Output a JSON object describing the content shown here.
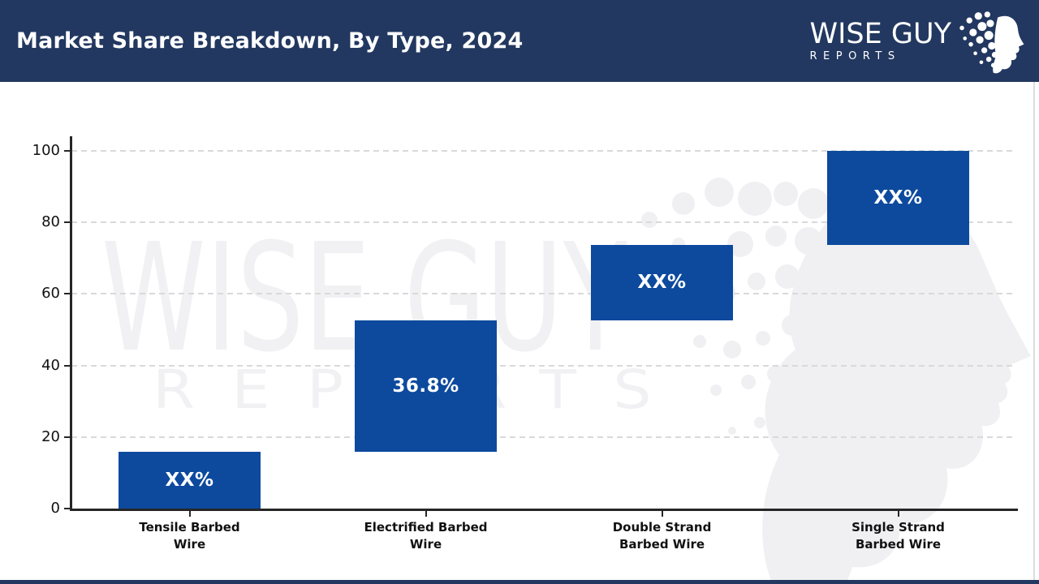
{
  "header": {
    "title": "Market Share Breakdown, By Type, 2024",
    "logo": {
      "name": "WISE GUY",
      "sub": "REPORTS"
    }
  },
  "watermark": {
    "name": "WISE GUY",
    "sub": "REPORTS"
  },
  "chart_data": {
    "type": "bar",
    "subtype": "floating-segment-waterfall",
    "title": "Market Share Breakdown, By Type, 2024",
    "categories": [
      "Tensile Barbed Wire",
      "Electrified Barbed Wire",
      "Double Strand Barbed Wire",
      "Single Strand Barbed Wire"
    ],
    "category_label_lines": [
      [
        "Tensile Barbed",
        "Wire"
      ],
      [
        "Electrified Barbed",
        "Wire"
      ],
      [
        "Double Strand",
        "Barbed Wire"
      ],
      [
        "Single Strand",
        "Barbed Wire"
      ]
    ],
    "series": [
      {
        "category": "Tensile Barbed Wire",
        "start": 0,
        "end": 15.8,
        "value": 15.8,
        "label": "XX%"
      },
      {
        "category": "Electrified Barbed Wire",
        "start": 15.8,
        "end": 52.6,
        "value": 36.8,
        "label": "36.8%"
      },
      {
        "category": "Double Strand Barbed Wire",
        "start": 52.6,
        "end": 73.7,
        "value": 21.1,
        "label": "XX%"
      },
      {
        "category": "Single Strand Barbed Wire",
        "start": 73.7,
        "end": 100,
        "value": 26.3,
        "label": "XX%"
      }
    ],
    "ylim": [
      0,
      100
    ],
    "yticks": [
      0,
      20,
      40,
      60,
      80,
      100
    ],
    "xlabel": "",
    "ylabel": "",
    "grid": "horizontal-dashed",
    "legend": "none",
    "colors": {
      "bar": "#0d4a9e",
      "bar_label": "#ffffff",
      "header_bg": "#223860",
      "axis": "#262626",
      "grid": "#d9d9d9",
      "tick_label": "#111111",
      "watermark": "#f1f1f4"
    }
  }
}
